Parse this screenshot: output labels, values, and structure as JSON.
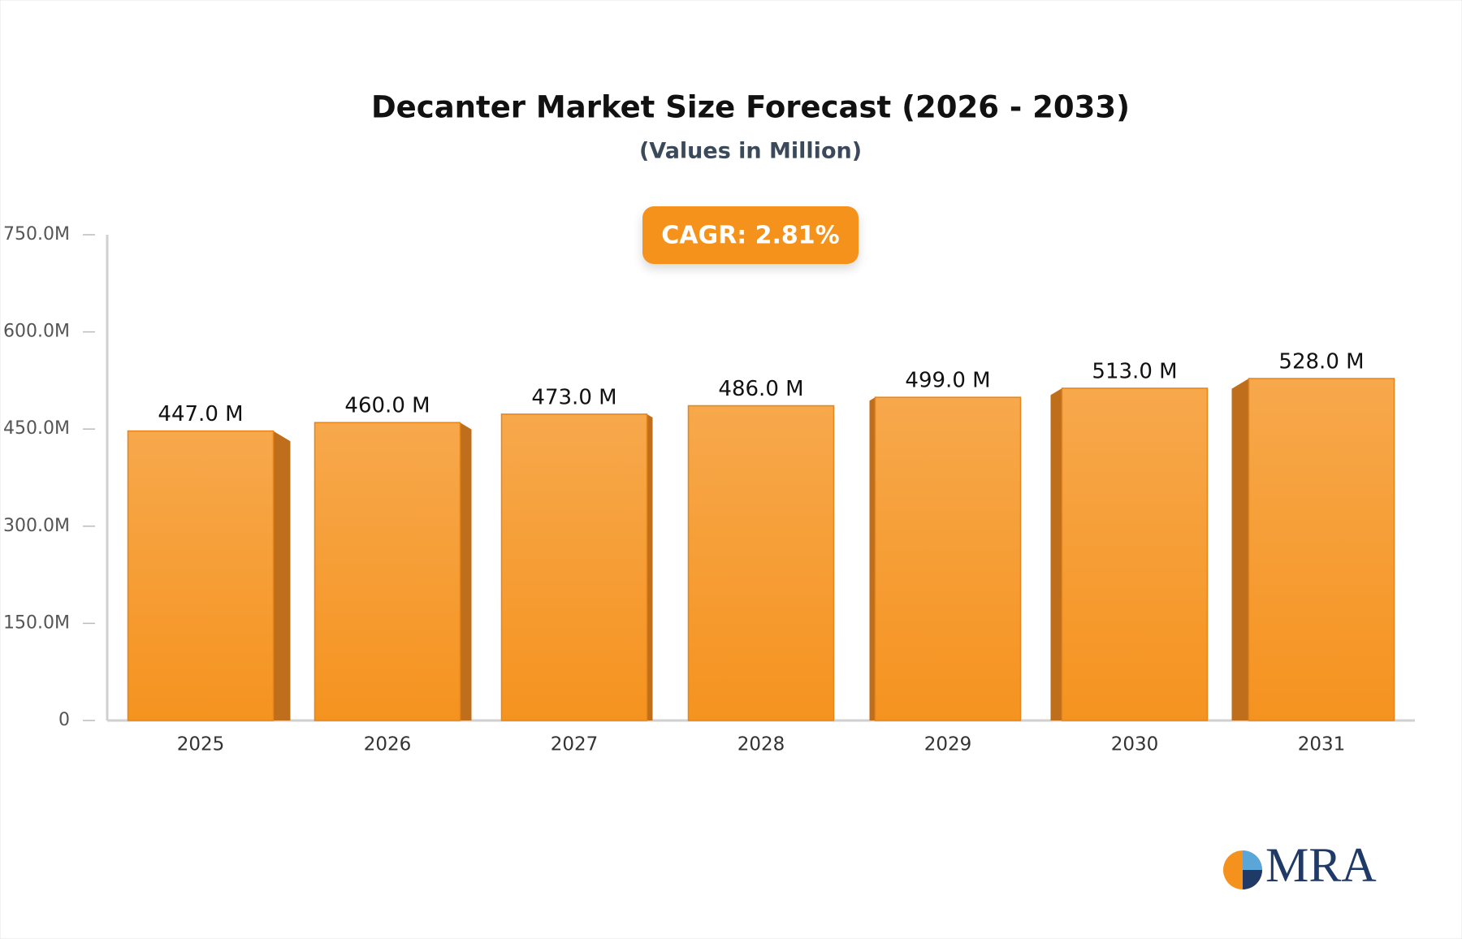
{
  "chart_data": {
    "type": "bar",
    "title": "Decanter Market Size Forecast (2026 - 2033)",
    "subtitle": "(Values in Million)",
    "annotation": "CAGR: 2.81%",
    "categories": [
      "2025",
      "2026",
      "2027",
      "2028",
      "2029",
      "2030",
      "2031"
    ],
    "values": [
      447,
      460,
      473,
      486,
      499,
      513,
      528
    ],
    "value_labels": [
      "447.0 M",
      "460.0 M",
      "473.0 M",
      "486.0 M",
      "499.0 M",
      "513.0 M",
      "528.0 M"
    ],
    "color": "#f5951f",
    "ylim": [
      0,
      750
    ],
    "yticks": [
      0,
      {
        "value": 150,
        "label": "150.0M"
      },
      {
        "value": 300,
        "label": "300.0M"
      },
      {
        "value": 450,
        "label": "450.0M"
      },
      {
        "value": 600,
        "label": "600.0M"
      },
      {
        "value": 750,
        "label": "750.0M"
      }
    ],
    "grid": false
  },
  "logo": "MRA"
}
